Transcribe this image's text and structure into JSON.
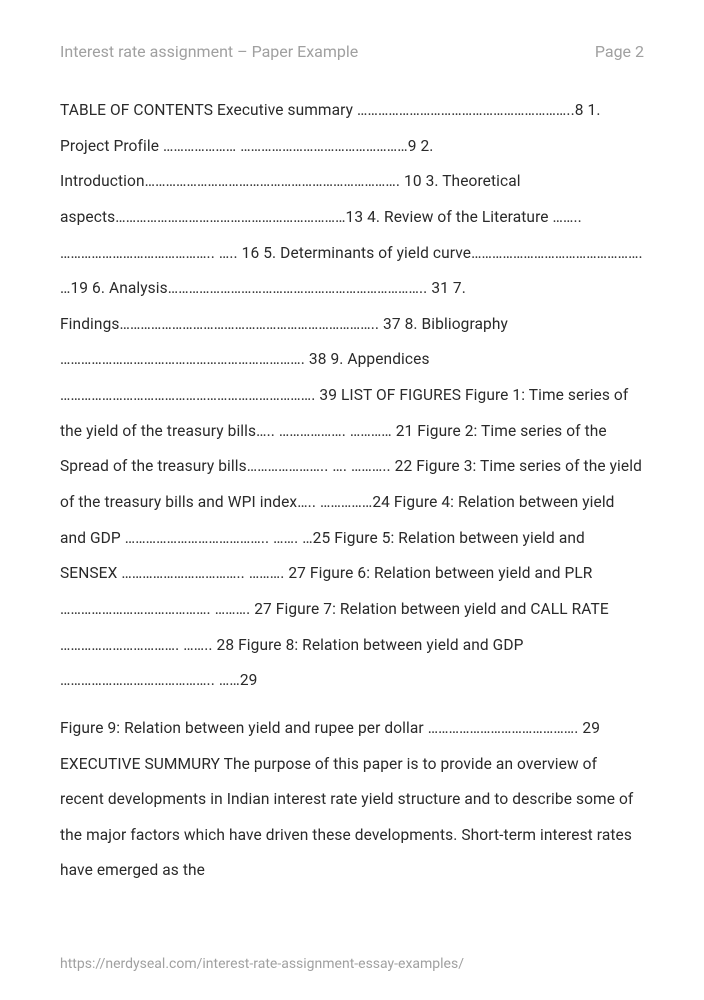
{
  "header": {
    "title": "Interest rate assignment – Paper Example",
    "page": "Page 2"
  },
  "body": {
    "paragraph1": "TABLE OF CONTENTS Executive summary ……………………………………………………..8 1. Project Profile ………………… …………………………………………9 2. Introduction………………………………………………………………. 10 3. Theoretical aspects…………………………………………………………13 4. Review of the Literature …….. …………………………………….. ….. 16 5. Determinants of yield curve…………………………………………. …19 6. Analysis……………………………………………………………….. 31 7. Findings……………………………………………………………….. 37 8. Bibliography ……………………………………………………………. 38 9. Appendices ………………………………………………………………. 39 LIST OF FIGURES Figure 1: Time series of the yield of the treasury bills….. ………………. ………… 21 Figure 2: Time series of the Spread of the treasury bills………………….. …. ……….. 22 Figure 3: Time series of the yield of the treasury bills and WPI index….. ……………24 Figure 4: Relation between yield and GDP ………………………………….. ……. …25 Figure 5: Relation between yield and SENSEX …………………………….. ………. 27 Figure 6: Relation between yield and PLR ……………………………………. ………. 27 Figure 7: Relation between yield and CALL RATE ……………………………. …….. 28 Figure 8: Relation between yield and GDP …………………………………….. ……29",
    "paragraph2": "Figure 9: Relation between yield and rupee per dollar ……………………………………. 29 EXECUTIVE SUMMURY The purpose of this paper is to provide an overview of recent developments in Indian interest rate yield structure and to describe some of the major factors which have driven these developments. Short-term interest rates have emerged as the"
  },
  "footer": {
    "url": "https://nerdyseal.com/interest-rate-assignment-essay-examples/"
  }
}
